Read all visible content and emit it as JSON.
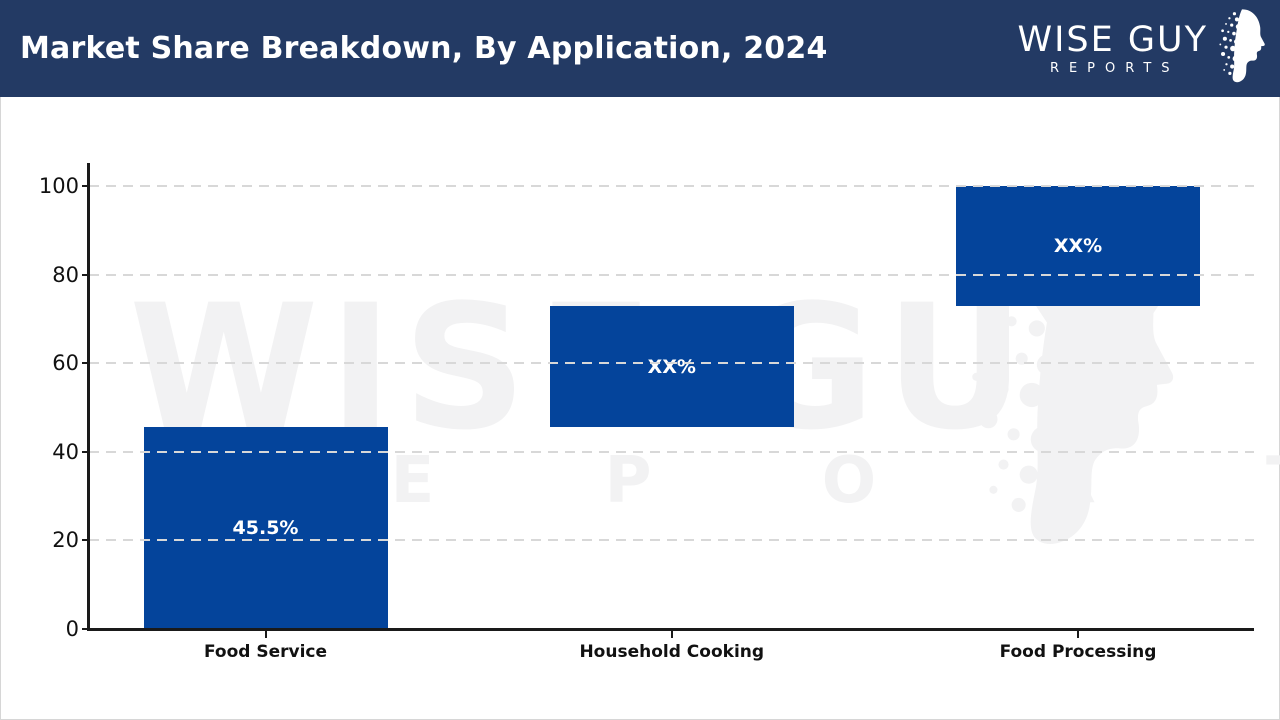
{
  "header": {
    "title": "Market Share Breakdown, By Application, 2024",
    "logo": {
      "line1": "WISE GUY",
      "line2": "REPORTS"
    }
  },
  "watermark": {
    "line1": "WISE GUY",
    "line2": "R E P O R T S"
  },
  "chart_data": {
    "type": "bar",
    "subtype": "waterfall-step",
    "title": "Market Share Breakdown, By Application, 2024",
    "categories": [
      "Food Service",
      "Household Cooking",
      "Food Processing"
    ],
    "segments": [
      {
        "category": "Food Service",
        "start": 0,
        "end": 45.5,
        "label": "45.5%"
      },
      {
        "category": "Household Cooking",
        "start": 45.5,
        "end": 72.8,
        "label": "XX%"
      },
      {
        "category": "Food Processing",
        "start": 72.8,
        "end": 100,
        "label": "XX%"
      }
    ],
    "xlabel": "",
    "ylabel": "",
    "ylim": [
      0,
      100
    ],
    "yticks": [
      0,
      20,
      40,
      60,
      80,
      100
    ],
    "grid": "horizontal-dashed",
    "legend": "none",
    "bar_color": "#04449B",
    "bar_label_color": "#FFFFFF",
    "axis_color": "#1A1A1A"
  },
  "colors": {
    "header_bg": "#233A64",
    "page_bg": "#FFFFFF",
    "grid": "#D8D8D8",
    "watermark": "#F2F2F3"
  }
}
